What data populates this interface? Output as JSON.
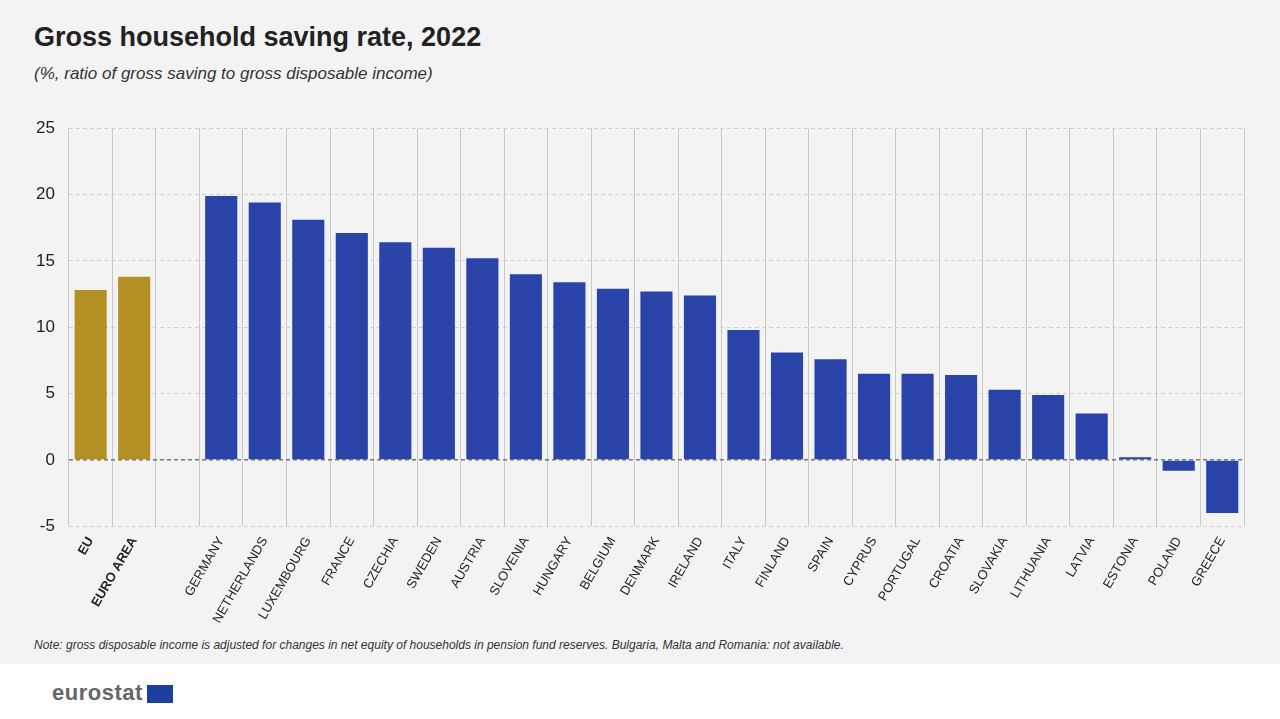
{
  "chart_data": {
    "type": "bar",
    "title": "Gross household saving rate, 2022",
    "subtitle": "(%, ratio of gross saving to gross disposable income)",
    "note": "Note: gross disposable income is adjusted for changes in net equity of households in pension fund reserves. Bulgaria, Malta and Romania: not available.",
    "source": "eurostat",
    "categories": [
      "EU",
      "EURO AREA",
      null,
      "GERMANY",
      "NETHERLANDS",
      "LUXEMBOURG",
      "FRANCE",
      "CZECHIA",
      "SWEDEN",
      "AUSTRIA",
      "SLOVENIA",
      "HUNGARY",
      "BELGIUM",
      "DENMARK",
      "IRELAND",
      "ITALY",
      "FINLAND",
      "SPAIN",
      "CYPRUS",
      "PORTUGAL",
      "CROATIA",
      "SLOVAKIA",
      "LITHUANIA",
      "LATVIA",
      "ESTONIA",
      "POLAND",
      "GREECE"
    ],
    "values": [
      12.8,
      13.8,
      null,
      19.9,
      19.4,
      18.1,
      17.1,
      16.4,
      16.0,
      15.2,
      14.0,
      13.4,
      12.9,
      12.7,
      12.4,
      9.8,
      8.1,
      7.6,
      6.5,
      6.5,
      6.4,
      5.3,
      4.9,
      3.5,
      0.2,
      -0.8,
      -4.0
    ],
    "colors": [
      "#b39024",
      "#b39024",
      "#2a43a8",
      "#2a43a8",
      "#2a43a8",
      "#2a43a8",
      "#2a43a8",
      "#2a43a8",
      "#2a43a8",
      "#2a43a8",
      "#2a43a8",
      "#2a43a8",
      "#2a43a8",
      "#2a43a8",
      "#2a43a8",
      "#2a43a8",
      "#2a43a8",
      "#2a43a8",
      "#2a43a8",
      "#2a43a8",
      "#2a43a8",
      "#2a43a8",
      "#2a43a8",
      "#2a43a8",
      "#2a43a8",
      "#2a43a8",
      "#2a43a8"
    ],
    "ylim": [
      -5,
      25
    ],
    "yticks": [
      -5,
      0,
      5,
      10,
      15,
      20,
      25
    ],
    "grid": true
  }
}
